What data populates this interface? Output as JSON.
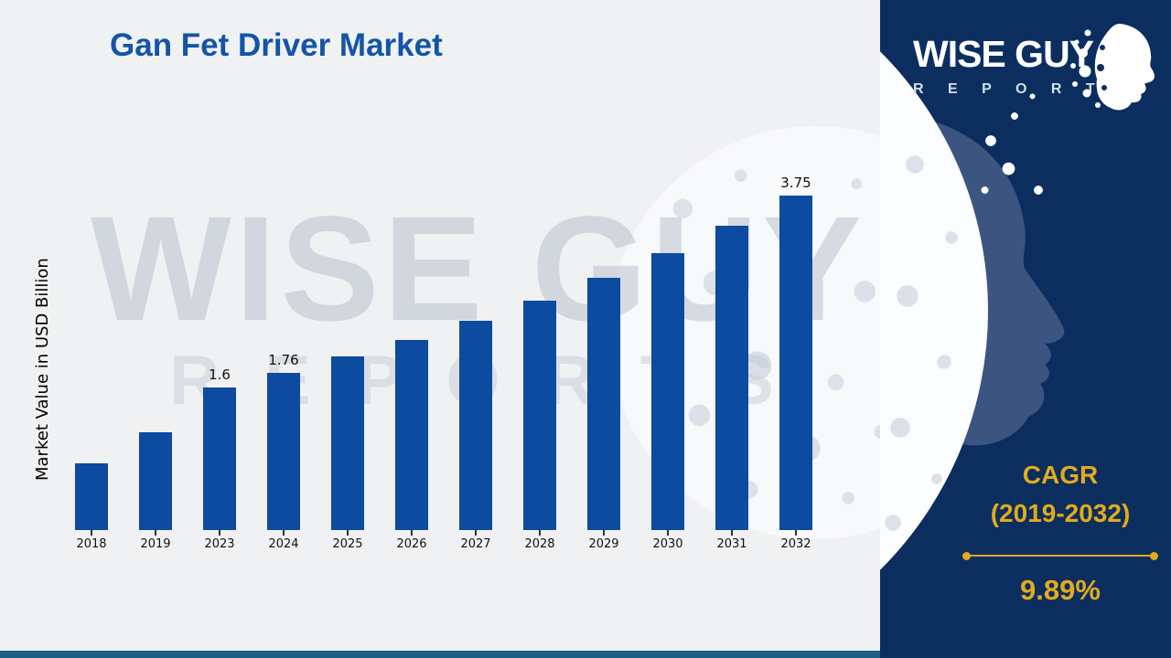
{
  "title": "Gan Fet Driver Market",
  "watermark": {
    "line1": "WISE GUY",
    "line2": "R E P O R T S"
  },
  "logo": {
    "line1": "WISE GUY",
    "line2": "R E P O R T S"
  },
  "cagr": {
    "heading": "CAGR",
    "range": "(2019-2032)",
    "value": "9.89%"
  },
  "colors": {
    "bar_blue": "#0c4ba0",
    "panel_navy": "#0b2e5f",
    "gold": "#e2ab1d",
    "teal_strip": "#1d607f",
    "title_blue": "#1355a6"
  },
  "chart_data": {
    "type": "bar",
    "categories": [
      "2018",
      "2019",
      "2023",
      "2024",
      "2025",
      "2026",
      "2027",
      "2028",
      "2029",
      "2030",
      "2031",
      "2032"
    ],
    "values": [
      0.75,
      1.1,
      1.6,
      1.76,
      1.95,
      2.13,
      2.35,
      2.57,
      2.83,
      3.11,
      3.42,
      3.75
    ],
    "data_labels": [
      "",
      "",
      "1.6",
      "1.76",
      "",
      "",
      "",
      "",
      "",
      "",
      "",
      "3.75"
    ],
    "title": "Gan Fet Driver Market",
    "xlabel": "",
    "ylabel": "Market Value in USD Billion",
    "ylim": [
      0,
      4
    ],
    "grid": false,
    "legend": false,
    "bar_color": "#0c4ba0"
  }
}
